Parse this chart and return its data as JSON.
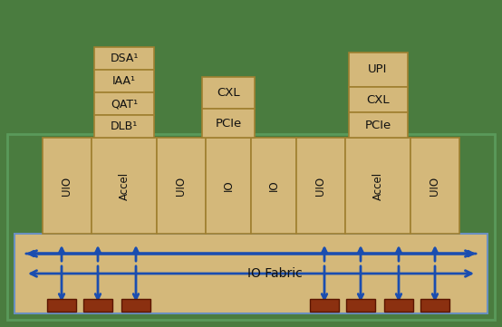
{
  "fig_width": 5.54,
  "fig_height": 3.61,
  "dpi": 100,
  "bg_outer": "#4a7c3f",
  "bg_inner": "#4a7c3f",
  "gold": "#d4b87a",
  "gold_edge": "#a08030",
  "arrow_color": "#1a4db0",
  "brick_color": "#8b3010",
  "brick_edge": "#5a1500",
  "connector_color": "#888888",
  "text_color": "#111111",
  "io_fabric_label": "IO Fabric",
  "tile_labels": [
    "UIO",
    "Accel",
    "UIO",
    "IO",
    "IO",
    "UIO",
    "Accel",
    "UIO"
  ],
  "popup_left_labels": [
    "DSA¹",
    "IAA¹",
    "QAT¹",
    "DLB¹"
  ],
  "popup_mid_labels": [
    "CXL",
    "PCIe"
  ],
  "popup_right_labels": [
    "UPI",
    "CXL",
    "PCIe"
  ],
  "panel_border": "#5a9a5a",
  "fabric_border": "#6a90c0"
}
